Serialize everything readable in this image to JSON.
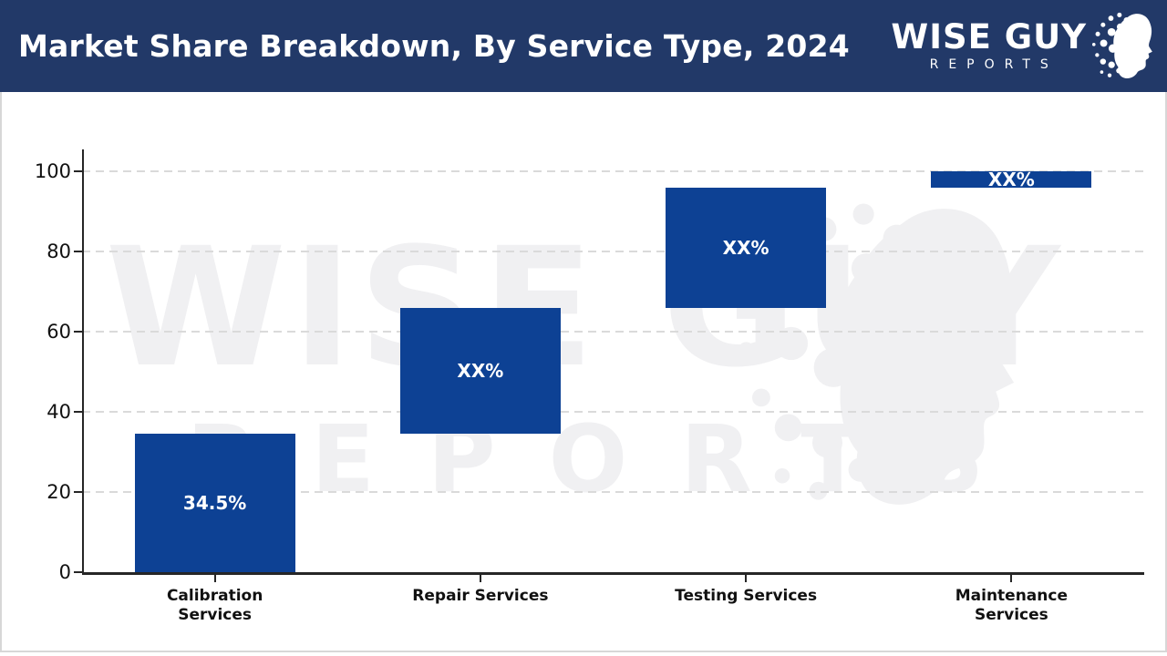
{
  "header": {
    "title": "Market Share Breakdown, By Service Type, 2024",
    "logo": {
      "line1": "WISE GUY",
      "line2": "REPORTS"
    }
  },
  "watermark": {
    "line1": "WISE GUY",
    "line2": "REPORTS"
  },
  "colors": {
    "header_bg": "#223968",
    "bar": "#0d4194",
    "bar_label": "#ffffff",
    "gridline": "#dadada",
    "axis": "#262626",
    "watermark": "#f0f0f2"
  },
  "chart_data": {
    "type": "bar",
    "subtype": "waterfall",
    "title": "Market Share Breakdown, By Service Type, 2024",
    "categories": [
      "Calibration\nServices",
      "Repair Services",
      "Testing Services",
      "Maintenance\nServices"
    ],
    "segments": [
      {
        "category": "Calibration Services",
        "label": "34.5%",
        "start": 0,
        "end": 34.5,
        "value": 34.5
      },
      {
        "category": "Repair Services",
        "label": "XX%",
        "start": 34.5,
        "end": 66,
        "value": 31.5
      },
      {
        "category": "Testing Services",
        "label": "XX%",
        "start": 66,
        "end": 96,
        "value": 30
      },
      {
        "category": "Maintenance Services",
        "label": "XX%",
        "start": 96,
        "end": 100,
        "value": 4
      }
    ],
    "xlabel": "",
    "ylabel": "",
    "ylim": [
      0,
      100
    ],
    "yticks": [
      0,
      20,
      40,
      60,
      80,
      100
    ],
    "grid": "horizontal-dashed",
    "legend": "none",
    "bar_color": "#0d4194"
  }
}
